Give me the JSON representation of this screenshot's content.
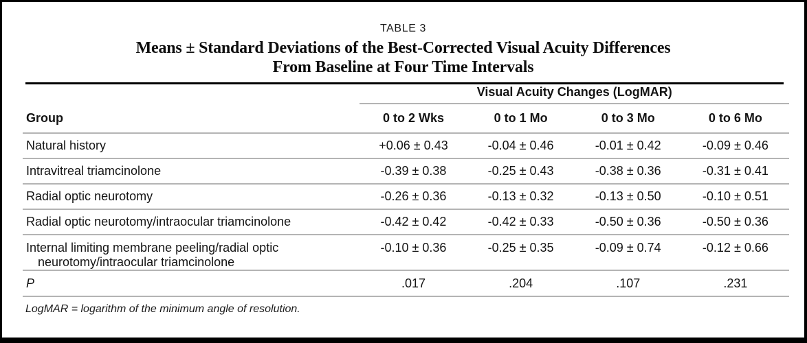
{
  "table": {
    "caption": "TABLE 3",
    "title_line1": "Means ± Standard Deviations of the Best-Corrected Visual Acuity Differences",
    "title_line2": "From Baseline at Four Time Intervals",
    "spanner": "Visual Acuity Changes (LogMAR)",
    "columns": [
      "Group",
      "0 to 2 Wks",
      "0 to 1 Mo",
      "0 to 3 Mo",
      "0 to 6 Mo"
    ],
    "rows": [
      {
        "label": "Natural history",
        "values": [
          "+0.06 ± 0.43",
          "-0.04 ± 0.46",
          "-0.01 ± 0.42",
          "-0.09 ± 0.46"
        ]
      },
      {
        "label": "Intravitreal triamcinolone",
        "values": [
          "-0.39 ± 0.38",
          "-0.25 ± 0.43",
          "-0.38 ± 0.36",
          "-0.31 ± 0.41"
        ]
      },
      {
        "label": "Radial optic neurotomy",
        "values": [
          "-0.26 ± 0.36",
          "-0.13 ± 0.32",
          "-0.13 ± 0.50",
          "-0.10 ± 0.51"
        ]
      },
      {
        "label": "Radial optic neurotomy/intraocular triamcinolone",
        "values": [
          "-0.42 ± 0.42",
          "-0.42 ± 0.33",
          "-0.50 ± 0.36",
          "-0.50 ± 0.36"
        ]
      },
      {
        "label": "Internal limiting membrane peeling/radial optic",
        "label2": "neurotomy/intraocular triamcinolone",
        "values": [
          "-0.10 ± 0.36",
          "-0.25 ± 0.35",
          "-0.09 ± 0.74",
          "-0.12 ± 0.66"
        ]
      }
    ],
    "p_row": {
      "label": "P",
      "values": [
        ".017",
        ".204",
        ".107",
        ".231"
      ]
    },
    "footnote": "LogMAR = logarithm of the minimum angle of resolution.",
    "colors": {
      "rule_gray": "#b4b4b4",
      "rule_black": "#000000",
      "text": "#121212",
      "background": "#ffffff"
    }
  }
}
